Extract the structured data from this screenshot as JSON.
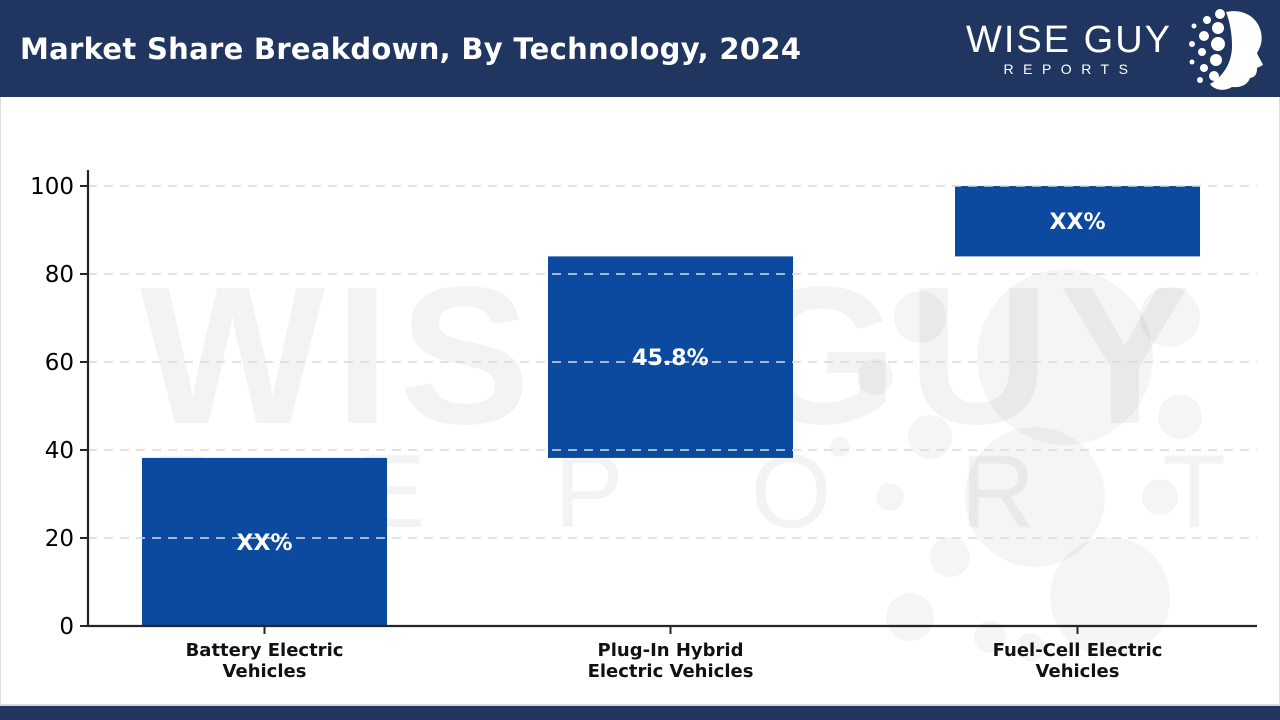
{
  "header": {
    "title": "Market Share Breakdown, By Technology, 2024",
    "brand": {
      "line1": "WISE GUY",
      "line2": "REPORTS"
    },
    "bg_color": "#20355f",
    "text_color": "#ffffff"
  },
  "watermark": {
    "line1": "WISE GUY",
    "line2": "R E P O R T S"
  },
  "chart_data": {
    "type": "bar",
    "subtype": "waterfall",
    "title": "Market Share Breakdown, By Technology, 2024",
    "categories": [
      "Battery Electric Vehicles",
      "Plug-In Hybrid Electric Vehicles",
      "Fuel-Cell Electric Vehicles"
    ],
    "category_lines": [
      [
        "Battery Electric",
        "Vehicles"
      ],
      [
        "Plug-In Hybrid",
        "Electric Vehicles"
      ],
      [
        "Fuel-Cell Electric",
        "Vehicles"
      ]
    ],
    "bars": [
      {
        "label": "XX%",
        "start": 0,
        "end": 38.2
      },
      {
        "label": "45.8%",
        "start": 38.2,
        "end": 84
      },
      {
        "label": "XX%",
        "start": 84,
        "end": 100
      }
    ],
    "yticks": [
      0,
      20,
      40,
      60,
      80,
      100
    ],
    "ylim": [
      0,
      104
    ],
    "xlabel": "",
    "ylabel": "",
    "bar_color": "#0b4a9e",
    "bar_label_color": "#ffffff",
    "grid": "dashed",
    "grid_color": "#d9d9d9",
    "axis_color": "#262626",
    "tick_label_color": "#000000",
    "category_label_color": "#111111",
    "legend": "none"
  }
}
